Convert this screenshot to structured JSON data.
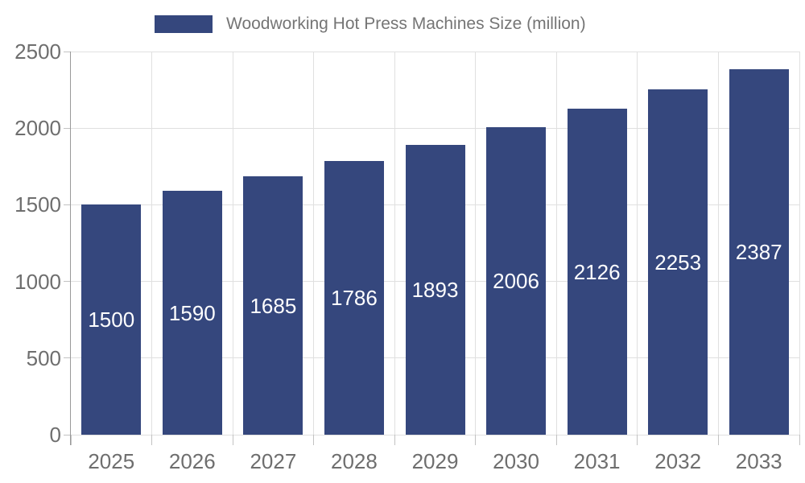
{
  "chart_data": {
    "type": "bar",
    "title": "Woodworking Hot Press Machines Size (million)",
    "categories": [
      "2025",
      "2026",
      "2027",
      "2028",
      "2029",
      "2030",
      "2031",
      "2032",
      "2033"
    ],
    "values": [
      1500,
      1590,
      1685,
      1786,
      1893,
      2006,
      2126,
      2253,
      2387
    ],
    "xlabel": "",
    "ylabel": "",
    "ylim": [
      0,
      2500
    ],
    "yticks": [
      0,
      500,
      1000,
      1500,
      2000,
      2500
    ],
    "grid": true,
    "legend_position": "top",
    "colors": {
      "bar": "#35477d",
      "grid": "#e0e0e0",
      "axis_line": "#999999",
      "tick_mark": "#c2c2c2",
      "tick_text": "#6e6e6e",
      "legend_text": "#757575",
      "value_label": "#ffffff",
      "background": "#ffffff"
    }
  }
}
